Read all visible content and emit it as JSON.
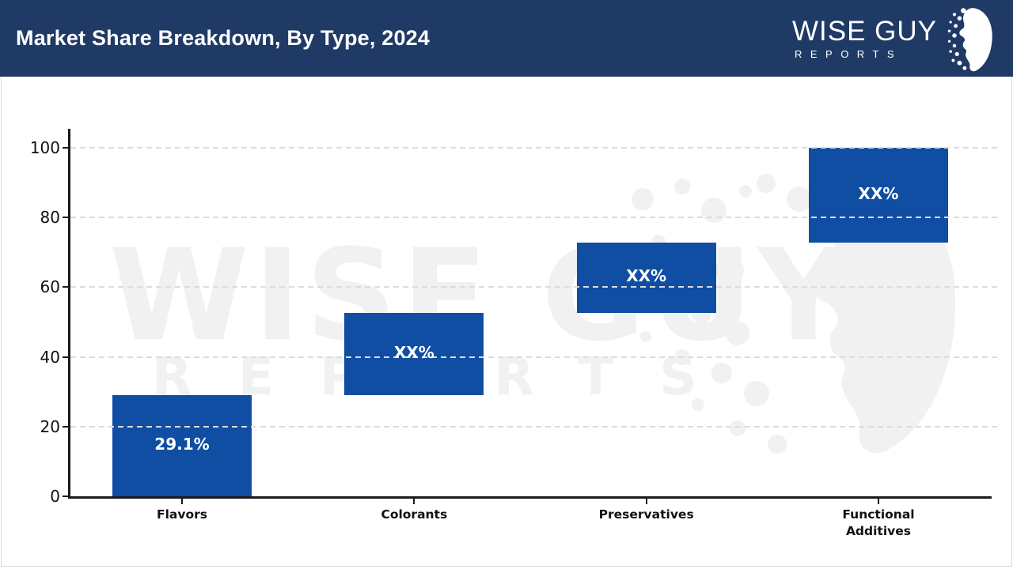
{
  "header": {
    "title": "Market Share Breakdown, By Type, 2024",
    "bg_color": "#203a66",
    "logo_line1": "WISE GUY",
    "logo_line2": "REPORTS"
  },
  "watermark": {
    "line1": "WISE GUY",
    "line2": "REPORTS"
  },
  "chart_data": {
    "type": "bar",
    "subtype": "floating-segment-waterfall",
    "title": "Market Share Breakdown, By Type, 2024",
    "categories": [
      "Flavors",
      "Colorants",
      "Preservatives",
      "Functional\nAdditives"
    ],
    "segments": [
      {
        "category": "Flavors",
        "start": 0,
        "end": 29.1,
        "label": "29.1%"
      },
      {
        "category": "Colorants",
        "start": 29.1,
        "end": 52.7,
        "label": "XX%"
      },
      {
        "category": "Preservatives",
        "start": 52.7,
        "end": 72.7,
        "label": "XX%"
      },
      {
        "category": "Functional\nAdditives",
        "start": 72.7,
        "end": 100,
        "label": "XX%"
      }
    ],
    "y_ticks": [
      0,
      20,
      40,
      60,
      80,
      100
    ],
    "ylim": [
      0,
      107
    ],
    "xlabel": "",
    "ylabel": "",
    "grid": "horizontal-dashed",
    "legend": "none",
    "bar_color": "#0f4ea3",
    "bar_label_color": "#ffffff",
    "axis_color": "#1a1a1a",
    "grid_color": "#dcdcdc",
    "tick_label_color": "#111111"
  }
}
